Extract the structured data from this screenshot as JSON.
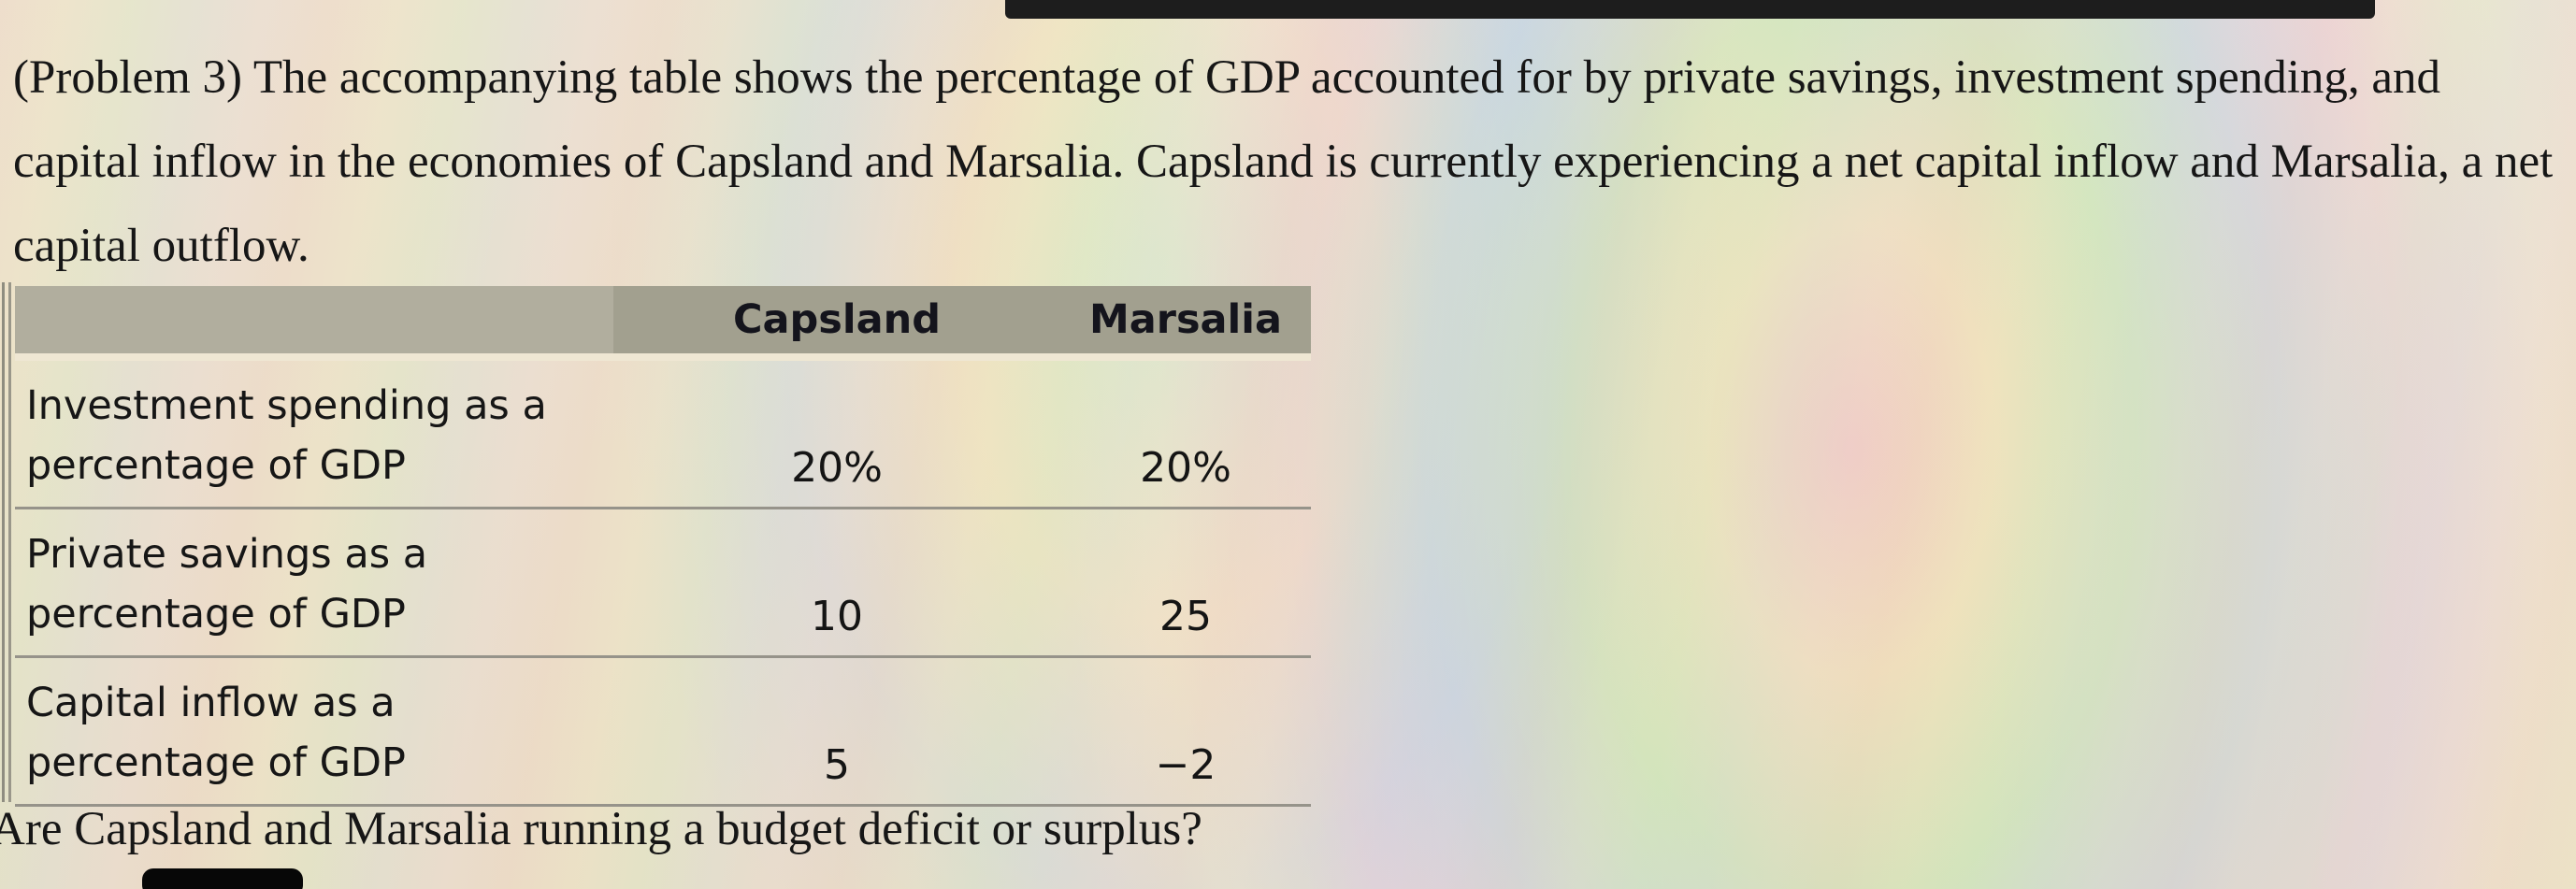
{
  "problem": {
    "statement": "(Problem 3) The accompanying table shows the percentage of GDP accounted for by private savings, investment spending, and capital inflow in the economies of Capsland and Marsalia. Capsland is currently experiencing a net capital inflow and Marsalia, a net capital outflow.",
    "question": "Are Capsland and Marsalia running a budget deficit or surplus?"
  },
  "table": {
    "column_headers": [
      "Capsland",
      "Marsalia"
    ],
    "rows": [
      {
        "label": "Investment spending as a percentage of GDP",
        "capsland": "20%",
        "marsalia": "20%"
      },
      {
        "label": "Private savings as a percentage of GDP",
        "capsland": "10",
        "marsalia": "25"
      },
      {
        "label": "Capital inflow as a percentage of GDP",
        "capsland": "5",
        "marsalia": "−2"
      }
    ]
  },
  "colors": {
    "page_background": "#ece3cf",
    "table_header_background": "#a2a08f",
    "text": "#161616",
    "rule": "#96938a"
  }
}
